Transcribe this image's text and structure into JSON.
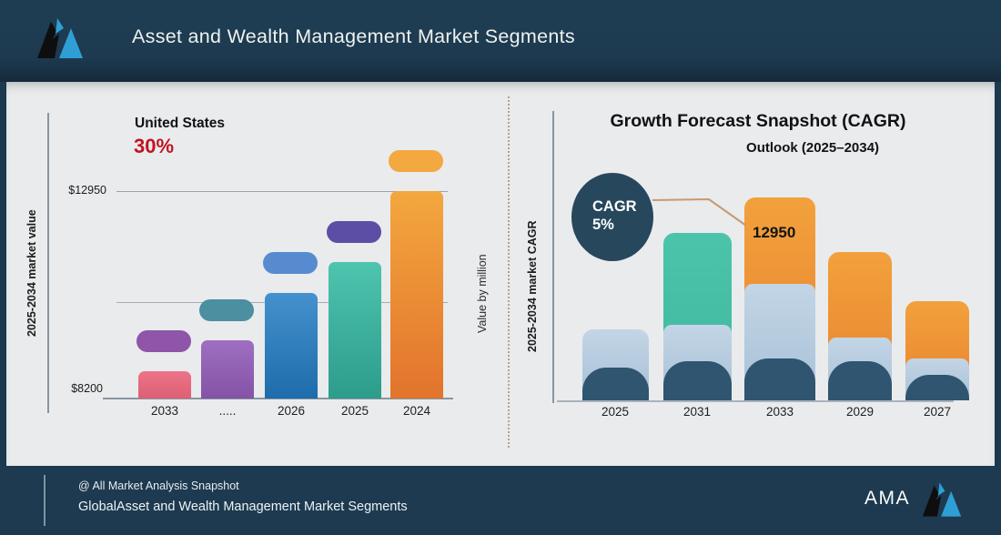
{
  "header": {
    "title": "Asset and Wealth Management Market Segments",
    "logo": "ama-mountain-logo"
  },
  "footer": {
    "line1": "@ All Market Analysis Snapshot",
    "line2": "GlobalAsset and Wealth Management Market Segments",
    "brand": "AMA",
    "logo": "ama-mountain-logo"
  },
  "colors": {
    "header_bg": "#1d3a50",
    "content_bg": "#e9ebed",
    "accent_red": "#c11320",
    "badge_bg": "#27475c",
    "callout_line": "#c8996f",
    "axis": "#8995a1",
    "segments": {
      "navy": [
        "#2f5570"
      ],
      "lightblue": [
        "#c3d5e6",
        "#a7c0d6"
      ],
      "teal": [
        "#4cc4ab",
        "#3eb79d"
      ],
      "orange": [
        "#f2a13c",
        "#e8832f"
      ]
    }
  },
  "chart_data": [
    {
      "type": "bar",
      "title": "United States",
      "highlight": "30%",
      "ylabel": "2025-2034 market value",
      "value_axis_note": "Value by million",
      "yticks": [
        "$12950",
        "$8200"
      ],
      "ylim": [
        8200,
        13200
      ],
      "categories": [
        "2033",
        ".....",
        "2026",
        "2025",
        "2024"
      ],
      "values": [
        8825,
        9535,
        10615,
        11325,
        12950
      ],
      "bars": [
        {
          "category": "2033",
          "value": 8825,
          "color_top": "#ec7488",
          "color_bottom": "#dd5f74",
          "cap_color": "#8f55a8"
        },
        {
          "category": ".....",
          "value": 9535,
          "color_top": "#9e6fc0",
          "color_bottom": "#8552a6",
          "cap_color": "#4b8fa0"
        },
        {
          "category": "2026",
          "value": 10615,
          "color_top": "#4591cd",
          "color_bottom": "#1e6cab",
          "cap_color": "#568ccf"
        },
        {
          "category": "2025",
          "value": 11325,
          "color_top": "#4ec4af",
          "color_bottom": "#2d9c8b",
          "cap_color": "#5b4ea4"
        },
        {
          "category": "2024",
          "value": 12950,
          "color_top": "#f3a73e",
          "color_bottom": "#e2732c",
          "cap_color": "#f3a840"
        }
      ]
    },
    {
      "type": "stacked-bar",
      "title": "Growth Forecast Snapshot (CAGR)",
      "subtitle": "Outlook (2025–2034)",
      "ylabel": "2025-2034 market CAGR",
      "badge": {
        "label": "CAGR",
        "value": "5%"
      },
      "callout_value": "12950",
      "categories": [
        "2025",
        "2031",
        "2033",
        "2029",
        "2027"
      ],
      "bars": [
        {
          "category": "2025",
          "segments": [
            {
              "color": "navy",
              "h": 36
            },
            {
              "color": "lightblue",
              "h": 42
            }
          ]
        },
        {
          "category": "2031",
          "segments": [
            {
              "color": "navy",
              "h": 43
            },
            {
              "color": "lightblue",
              "h": 40
            },
            {
              "color": "teal",
              "h": 101
            }
          ]
        },
        {
          "category": "2033",
          "segments": [
            {
              "color": "navy",
              "h": 46
            },
            {
              "color": "lightblue",
              "h": 82
            },
            {
              "color": "orange",
              "h": 95
            }
          ]
        },
        {
          "category": "2029",
          "segments": [
            {
              "color": "navy",
              "h": 43
            },
            {
              "color": "lightblue",
              "h": 26
            },
            {
              "color": "orange",
              "h": 94
            }
          ]
        },
        {
          "category": "2027",
          "segments": [
            {
              "color": "navy",
              "h": 28
            },
            {
              "color": "lightblue",
              "h": 18
            },
            {
              "color": "orange",
              "h": 63
            }
          ]
        }
      ]
    }
  ]
}
